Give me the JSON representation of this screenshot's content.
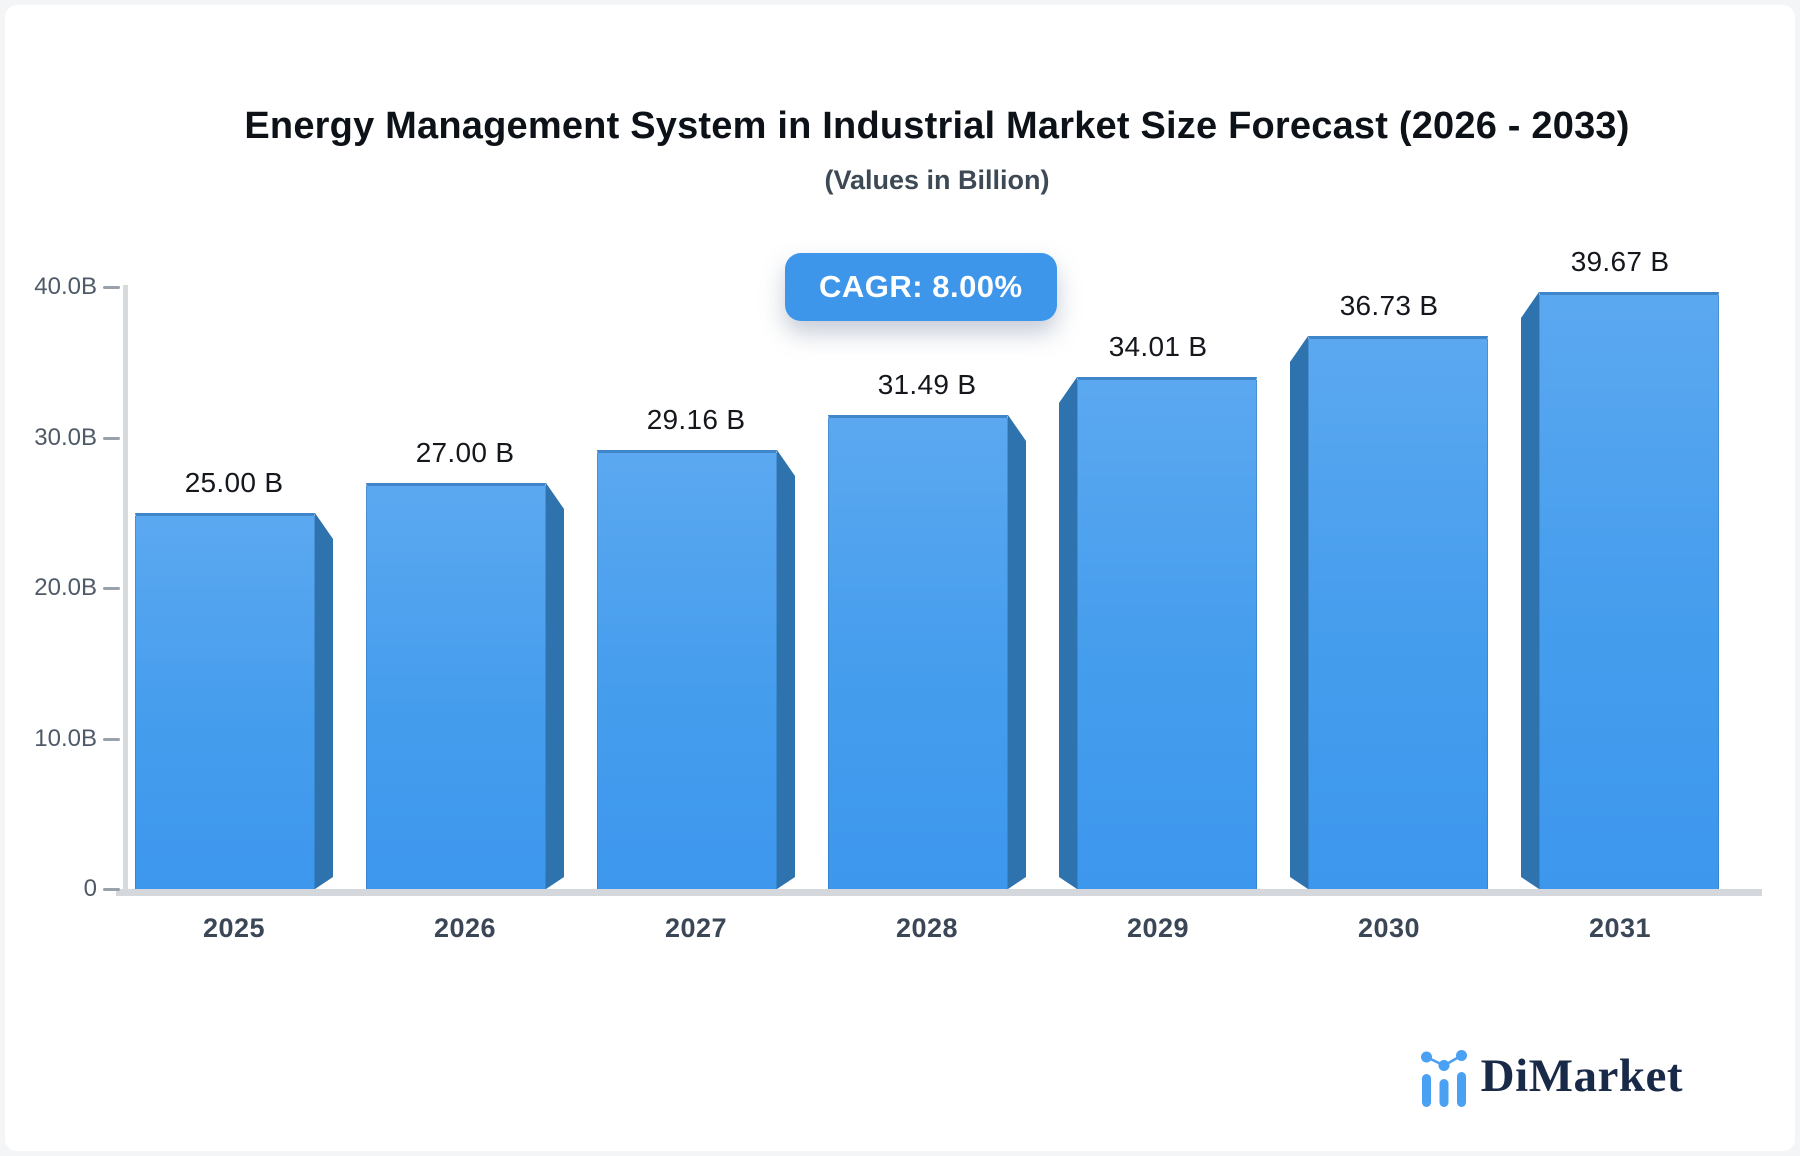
{
  "chart_data": {
    "type": "bar",
    "title": "Energy Management System in Industrial Market Size Forecast (2026 - 2033)",
    "subtitle": "(Values in Billion)",
    "cagr_label": "CAGR: 8.00%",
    "categories": [
      "2025",
      "2026",
      "2027",
      "2028",
      "2029",
      "2030",
      "2031"
    ],
    "values": [
      25.0,
      27.0,
      29.16,
      31.49,
      34.01,
      36.73,
      39.67
    ],
    "bar_labels": [
      "25.00 B",
      "27.00 B",
      "29.16 B",
      "31.49 B",
      "34.01 B",
      "36.73 B",
      "39.67 B"
    ],
    "y_ticks": [
      {
        "value": 40,
        "label": "40.0B"
      },
      {
        "value": 30,
        "label": "30.0B"
      },
      {
        "value": 20,
        "label": "20.0B"
      },
      {
        "value": 10,
        "label": "10.0B"
      },
      {
        "value": 0,
        "label": "0"
      }
    ],
    "ylim": [
      0,
      40
    ],
    "xlabel": "",
    "ylabel": "",
    "grid": false,
    "legend": false,
    "colors": {
      "bar_top": "#5ba8f0",
      "bar_bottom": "#3d97ed",
      "bar_side": "#2e72ae",
      "badge": "#3e96ea",
      "axis": "#d5d8dc"
    }
  },
  "logo": {
    "text": "DiMarket",
    "icon": "dimarket-bar-chart-icon",
    "icon_color": "#4aa0f2",
    "text_color": "#192a49"
  }
}
